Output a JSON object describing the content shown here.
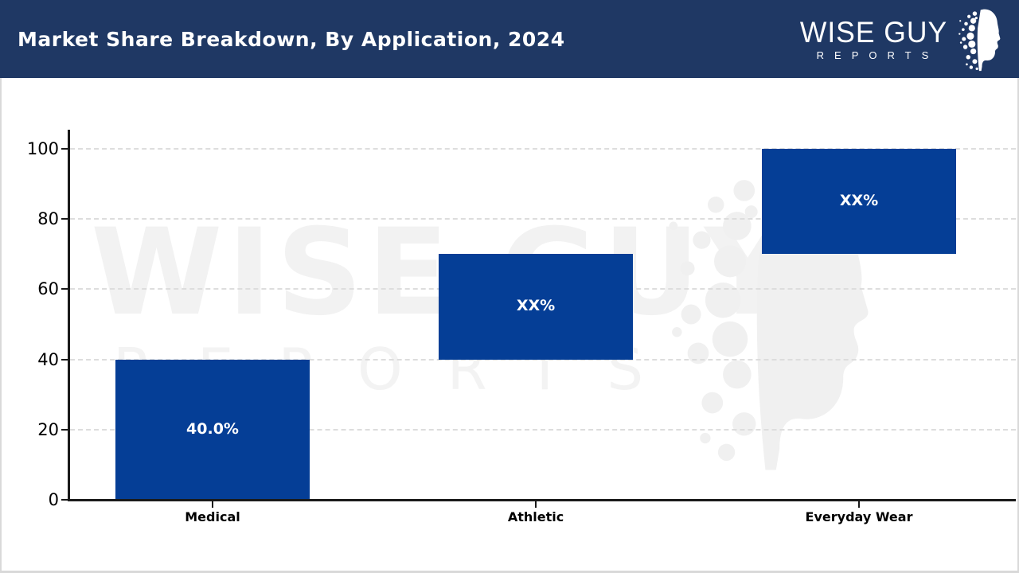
{
  "header": {
    "title": "Market Share Breakdown, By Application, 2024",
    "bg_color": "#1f3864",
    "logo": {
      "line1": "WISE GUY",
      "line2": "REPORTS"
    }
  },
  "watermark": {
    "line1": "WISE GUY",
    "line2": "REPORTS"
  },
  "chart_data": {
    "type": "bar",
    "variant": "floating-segments",
    "title": "Market Share Breakdown, By Application, 2024",
    "categories": [
      "Medical",
      "Athletic",
      "Everyday Wear"
    ],
    "segments": [
      {
        "category": "Medical",
        "from": 0,
        "to": 40,
        "label": "40.0%"
      },
      {
        "category": "Athletic",
        "from": 40,
        "to": 70,
        "label": "XX%"
      },
      {
        "category": "Everyday Wear",
        "from": 70,
        "to": 100,
        "label": "XX%"
      }
    ],
    "yticks": [
      0,
      20,
      40,
      60,
      80,
      100
    ],
    "ylim": [
      0,
      105
    ],
    "xlabel": "",
    "ylabel": "",
    "grid": "horizontal-dashed",
    "legend": "none",
    "bar_color": "#053e96",
    "bar_label_color": "#ffffff",
    "axis_color": "#1a1a1a",
    "gridline_color": "#dddddd"
  }
}
